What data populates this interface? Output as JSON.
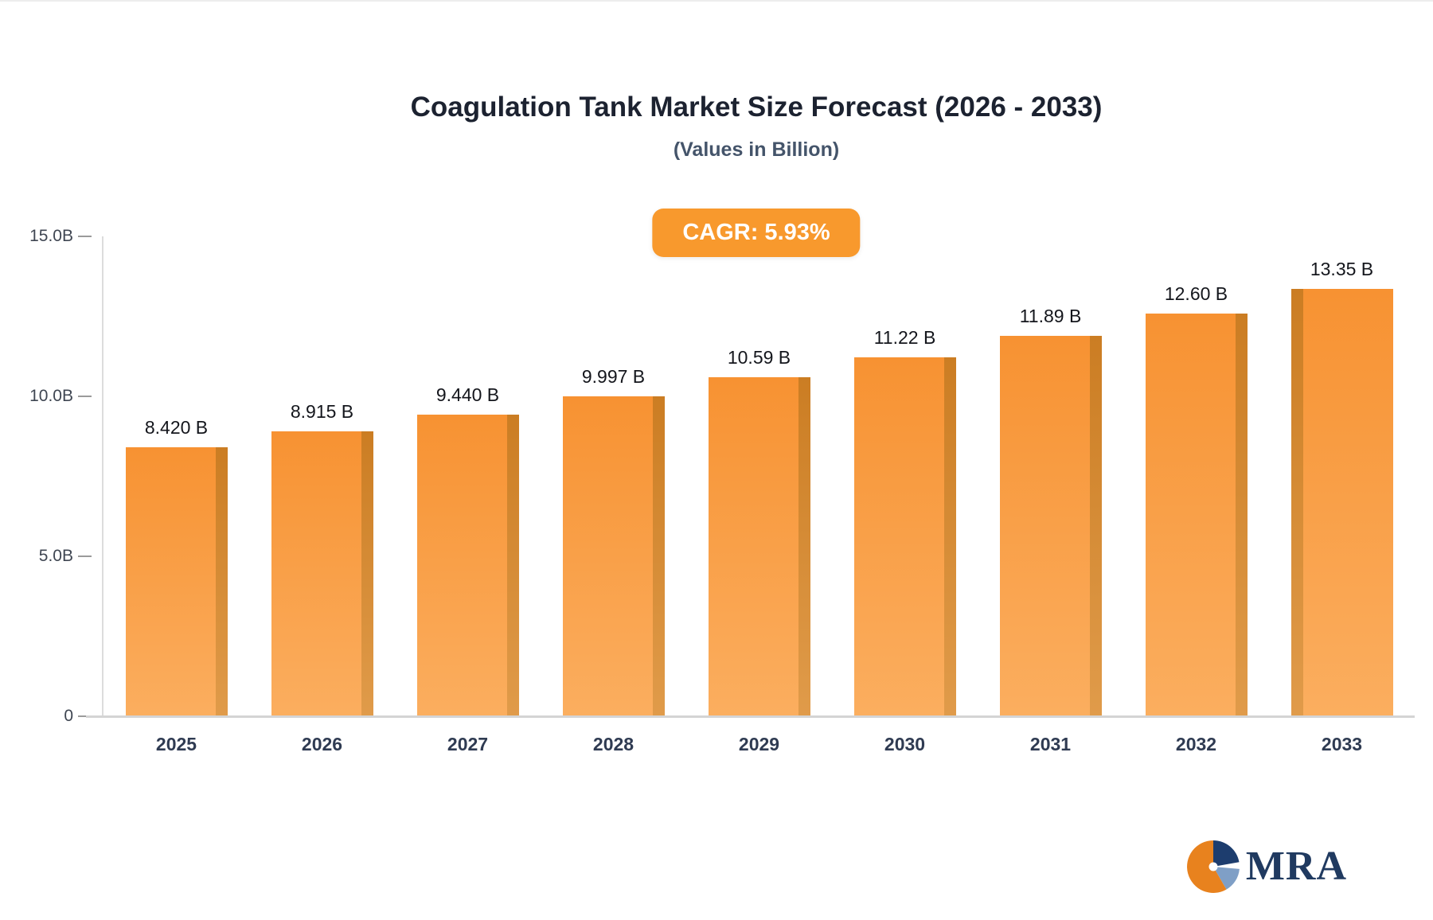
{
  "header": {
    "title": "Coagulation Tank Market Size Forecast (2026 - 2033)",
    "subtitle": "(Values in Billion)",
    "cagr_label": "CAGR: 5.93%"
  },
  "chart_data": {
    "type": "bar",
    "title": "Coagulation Tank Market Size Forecast (2026 - 2033)",
    "subtitle": "(Values in Billion)",
    "cagr": "5.93%",
    "categories": [
      "2025",
      "2026",
      "2027",
      "2028",
      "2029",
      "2030",
      "2031",
      "2032",
      "2033"
    ],
    "values": [
      8.42,
      8.915,
      9.44,
      9.997,
      10.59,
      11.22,
      11.89,
      12.6,
      13.35
    ],
    "value_labels": [
      "8.420 B",
      "8.915 B",
      "9.440 B",
      "9.997 B",
      "10.59 B",
      "11.22 B",
      "11.89 B",
      "12.60 B",
      "13.35 B"
    ],
    "xlabel": "",
    "ylabel": "",
    "ylim": [
      0,
      15
    ],
    "yticks": [
      {
        "value": 15,
        "label": "15.0B"
      },
      {
        "value": 10,
        "label": "10.0B"
      },
      {
        "value": 5,
        "label": "5.0B"
      },
      {
        "value": 0,
        "label": "0"
      }
    ],
    "grid": false,
    "legend": false,
    "bar_color_top": "#f79232",
    "bar_color_bottom": "#fbae5f",
    "bar_side_color": "#cb7d23"
  },
  "branding": {
    "logo_text": "MRA",
    "logo_icon": "pie-circle-icon",
    "logo_colors": {
      "orange": "#e8821e",
      "navy": "#1d3d6e",
      "blue": "#7f9fc6"
    }
  },
  "colors": {
    "accent_orange": "#f8992d",
    "title_color": "#1c2230",
    "subtitle_color": "#44546a",
    "axis_color": "#d4d4d4"
  }
}
